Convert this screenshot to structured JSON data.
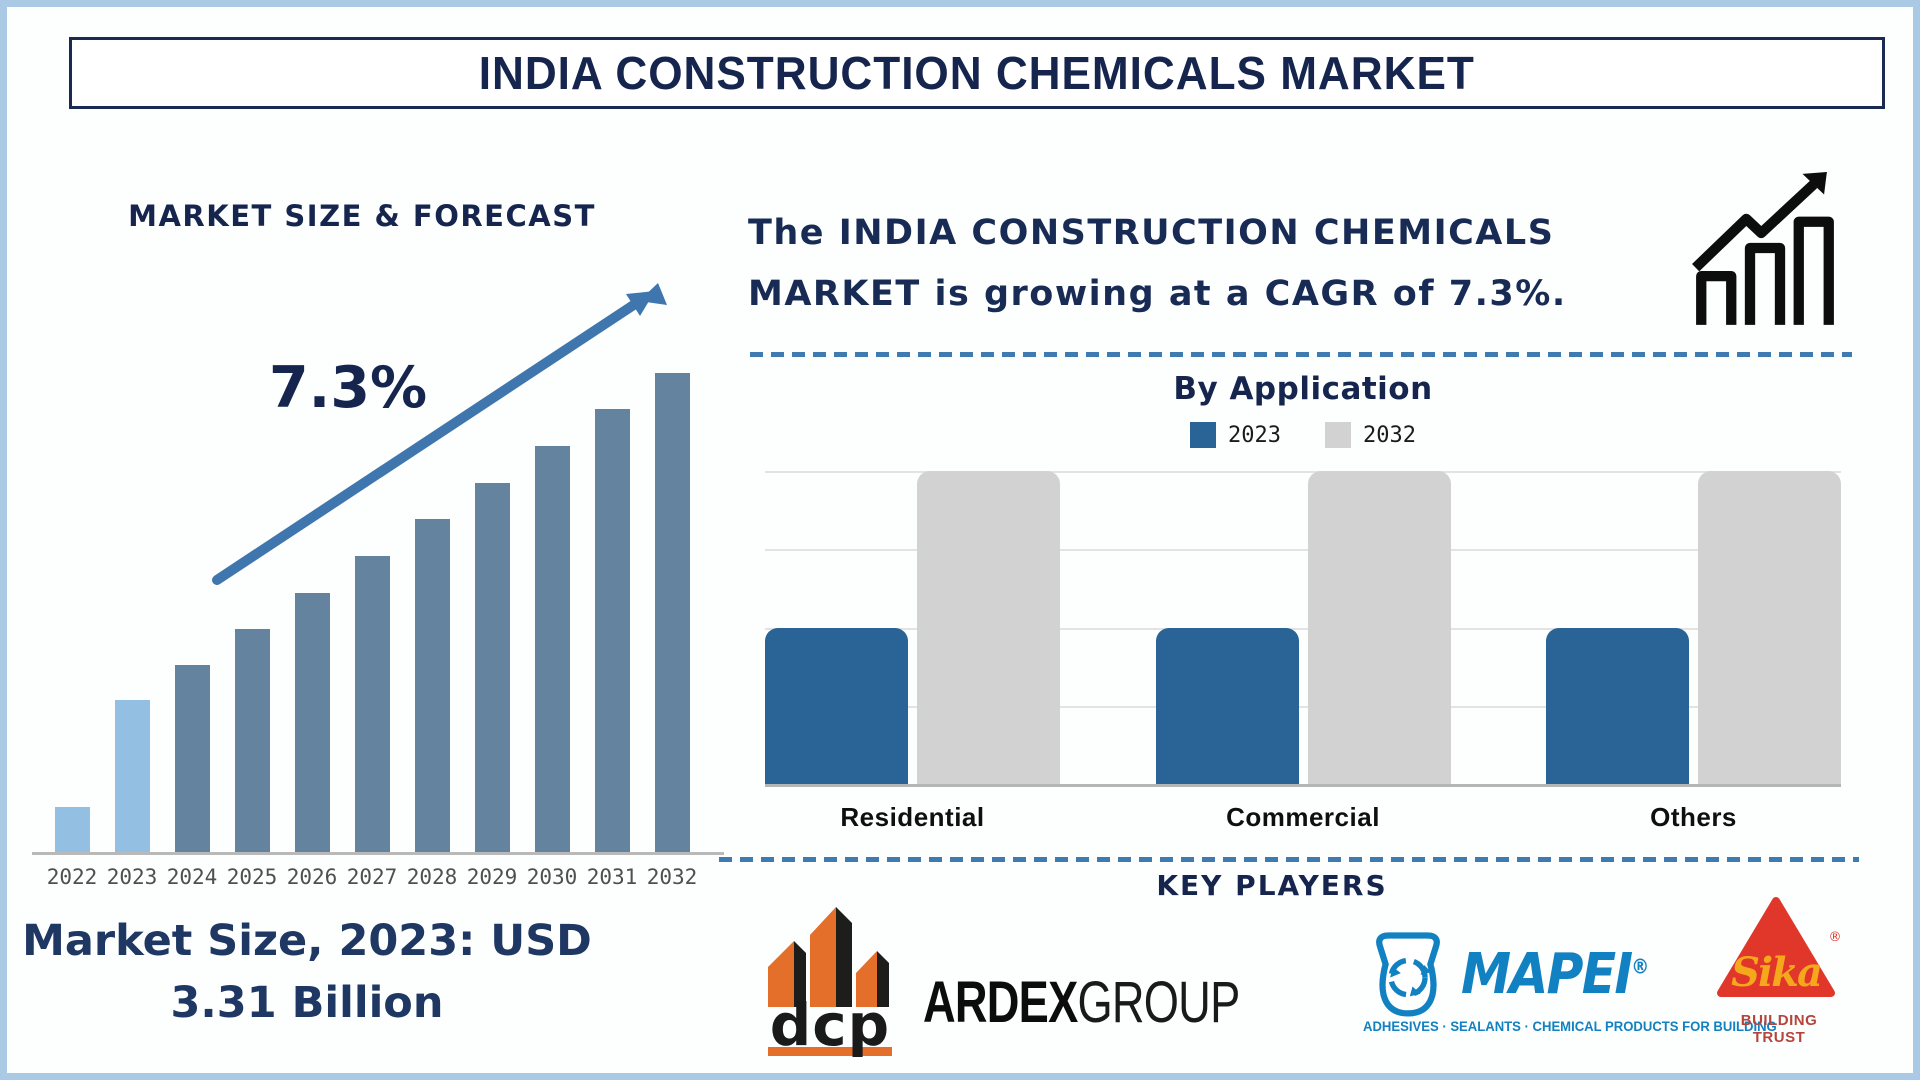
{
  "page": {
    "title": "INDIA CONSTRUCTION CHEMICALS MARKET"
  },
  "left_chart": {
    "heading": "MARKET SIZE & FORECAST",
    "cagr_label": "7.3%",
    "caption_line1": "Market Size, 2023: USD",
    "caption_line2": "3.31 Billion"
  },
  "right": {
    "paragraph_line1": "The INDIA CONSTRUCTION CHEMICALS",
    "paragraph_line2": "MARKET is growing at a CAGR of 7.3%."
  },
  "application_chart": {
    "heading": "By Application"
  },
  "key_players": {
    "heading": "KEY PLAYERS",
    "dcp": {
      "text": "dcp"
    },
    "ardex": {
      "bold": "ARDEX",
      "light": "GROUP"
    },
    "mapei": {
      "name": "MAPEI",
      "reg": "®",
      "tagline": "ADHESIVES · SEALANTS · CHEMICAL PRODUCTS FOR BUILDING"
    },
    "sika": {
      "name": "Sika",
      "reg": "®",
      "tagline": "BUILDING TRUST"
    }
  },
  "colors": {
    "navy_text": "#16254e",
    "caption_navy": "#1f3763",
    "steel_bar": "#64839e",
    "light_bar": "#93bfe3",
    "arrow_blue": "#3e76ad",
    "app_2023_blue": "#2a6496",
    "app_2032_gray": "#d2d2d2",
    "dashed_line": "#3f7ab0",
    "year_label_gray": "#4f4f4f",
    "outer_border": "#a9c9e5",
    "dcp_orange": "#e36f2a",
    "mapei_blue": "#1181c2",
    "sika_red": "#e0372a",
    "sika_yellow": "#f6a81c"
  },
  "chart_data": [
    {
      "type": "bar",
      "title": "MARKET SIZE & FORECAST",
      "categories": [
        "2022",
        "2023",
        "2024",
        "2025",
        "2026",
        "2027",
        "2028",
        "2029",
        "2030",
        "2031",
        "2032"
      ],
      "values_relative_pct_of_2032": [
        9.5,
        31.8,
        39.2,
        46.6,
        54.2,
        61.9,
        69.5,
        77.1,
        84.7,
        92.4,
        100
      ],
      "highlight_years_light_blue": [
        "2022",
        "2023"
      ],
      "bar_color": "#64839e",
      "highlight_color": "#93bfe3",
      "annotations": {
        "cagr": "7.3%",
        "market_size_2023": "USD 3.31 Billion"
      },
      "xlabel": "",
      "ylabel": "",
      "grid": false,
      "note": "stylized forecast bars, no numeric y-axis shown"
    },
    {
      "type": "bar",
      "title": "By Application",
      "categories": [
        "Residential",
        "Commercial",
        "Others"
      ],
      "series": [
        {
          "name": "2023",
          "color": "#2a6496",
          "values_relative": [
            50,
            50,
            50
          ]
        },
        {
          "name": "2032",
          "color": "#d2d2d2",
          "values_relative": [
            100,
            100,
            100
          ]
        }
      ],
      "legend_position": "top",
      "grid": true,
      "ylim_relative": [
        0,
        100
      ],
      "note": "no numeric y-axis shown; 2032 bars reach top gridline, 2023 bars reach 50% gridline"
    }
  ]
}
